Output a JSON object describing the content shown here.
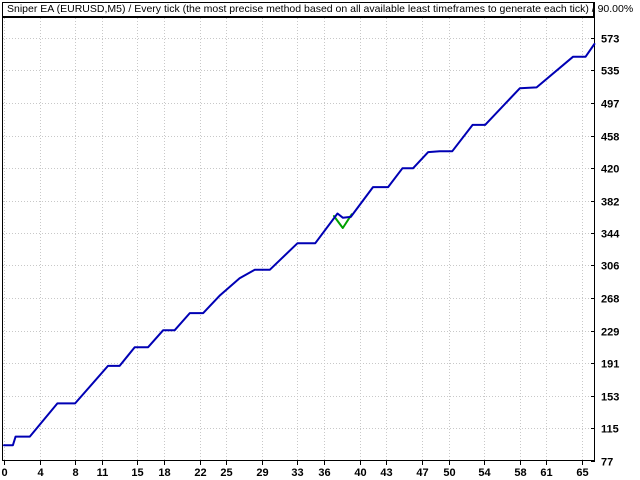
{
  "window": {
    "title": "Sniper EA (EURUSD,M5) / Every tick (the most precise method based on all available least timeframes to generate each tick) / 90.00%"
  },
  "colors": {
    "background": "#ffffff",
    "border": "#000000",
    "grid": "#c8c8c8",
    "tick_label": "#000000",
    "balance_line": "#0000b4",
    "drawdown_line": "#00a000"
  },
  "chart_data": {
    "type": "line",
    "title": "Sniper EA (EURUSD,M5) / Every tick (the most precise method based on all available least timeframes to generate each tick) / 90.00%",
    "xlabel": "",
    "ylabel": "",
    "grid": true,
    "legend_position": "none",
    "xlim": [
      0,
      66.5
    ],
    "ylim": [
      77,
      596
    ],
    "x_ticks": [
      0,
      4,
      8,
      11,
      15,
      18,
      22,
      25,
      29,
      33,
      36,
      40,
      43,
      47,
      50,
      54,
      58,
      61,
      65
    ],
    "y_ticks": [
      77,
      115,
      153,
      191,
      229,
      268,
      306,
      344,
      382,
      420,
      458,
      497,
      535,
      573
    ],
    "series": [
      {
        "name": "balance",
        "color": "#0000b4",
        "width": 2,
        "points": [
          [
            0,
            95
          ],
          [
            1,
            95
          ],
          [
            1.3,
            105
          ],
          [
            2.9,
            105
          ],
          [
            6,
            144
          ],
          [
            8,
            144
          ],
          [
            11.7,
            188
          ],
          [
            13,
            188
          ],
          [
            14.7,
            210
          ],
          [
            16.2,
            210
          ],
          [
            17.9,
            230
          ],
          [
            19.2,
            230
          ],
          [
            20.9,
            250
          ],
          [
            22.4,
            250
          ],
          [
            24.3,
            271
          ],
          [
            26.5,
            291
          ],
          [
            28.2,
            301
          ],
          [
            29.9,
            301
          ],
          [
            33,
            332
          ],
          [
            35,
            332
          ],
          [
            37.5,
            367
          ],
          [
            38.1,
            362
          ],
          [
            39,
            363
          ],
          [
            41.5,
            398
          ],
          [
            43.2,
            398
          ],
          [
            44.8,
            420
          ],
          [
            46,
            420
          ],
          [
            47.7,
            439
          ],
          [
            49,
            440
          ],
          [
            50.4,
            440
          ],
          [
            52.7,
            471
          ],
          [
            54.1,
            471
          ],
          [
            58,
            514
          ],
          [
            59.9,
            515
          ],
          [
            64,
            551
          ],
          [
            65.4,
            551
          ],
          [
            66.4,
            566
          ]
        ]
      },
      {
        "name": "drawdown-marker",
        "color": "#00a000",
        "width": 2,
        "points": [
          [
            37.1,
            364
          ],
          [
            38.1,
            350
          ],
          [
            39.1,
            366
          ]
        ]
      }
    ]
  }
}
